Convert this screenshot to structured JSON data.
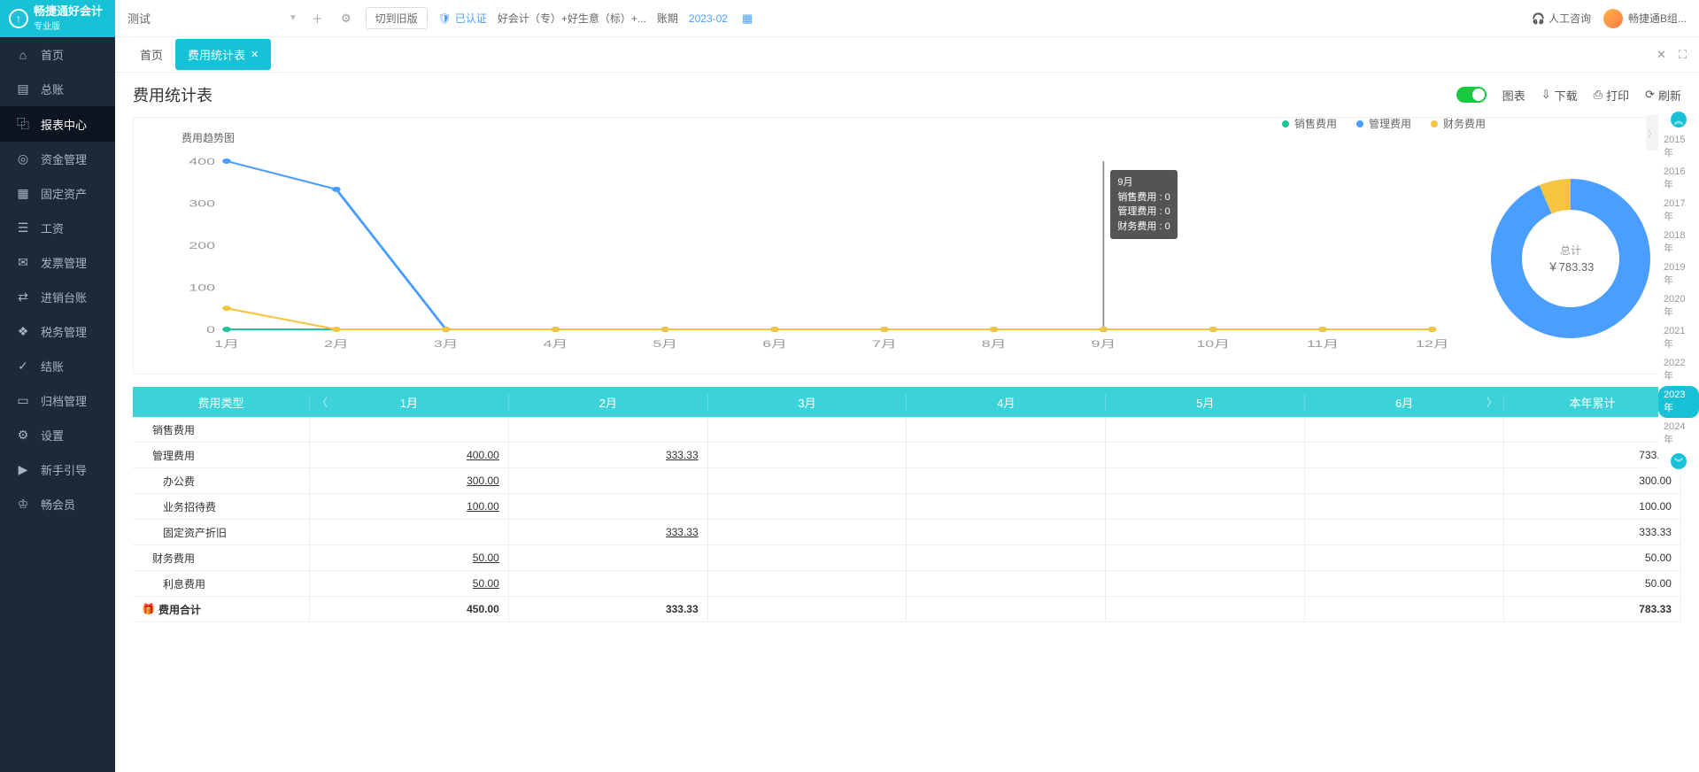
{
  "logo": {
    "brand": "畅捷通好会计",
    "edition": "专业版"
  },
  "sidebar": [
    {
      "icon": "⌂",
      "label": "首页"
    },
    {
      "icon": "▤",
      "label": "总账"
    },
    {
      "icon": "⿻",
      "label": "报表中心",
      "active": true
    },
    {
      "icon": "◎",
      "label": "资金管理"
    },
    {
      "icon": "▦",
      "label": "固定资产"
    },
    {
      "icon": "☰",
      "label": "工资"
    },
    {
      "icon": "✉",
      "label": "发票管理"
    },
    {
      "icon": "⇄",
      "label": "进销台账"
    },
    {
      "icon": "❖",
      "label": "税务管理"
    },
    {
      "icon": "✓",
      "label": "结账"
    },
    {
      "icon": "▭",
      "label": "归档管理"
    },
    {
      "icon": "⚙",
      "label": "设置"
    },
    {
      "icon": "▶",
      "label": "新手引导"
    },
    {
      "icon": "♔",
      "label": "畅会员"
    }
  ],
  "topbar": {
    "org": "测试",
    "old_version": "切到旧版",
    "verified": "已认证",
    "plan": "好会计（专）+好生意（标）+...",
    "period_label": "账期",
    "period_value": "2023-02",
    "support": "人工咨询",
    "user": "畅捷通B组..."
  },
  "tabs": [
    {
      "label": "首页",
      "active": false,
      "closeable": false
    },
    {
      "label": "费用统计表",
      "active": true,
      "closeable": true
    }
  ],
  "page": {
    "title": "费用统计表",
    "actions": {
      "chart": "图表",
      "download": "下载",
      "print": "打印",
      "refresh": "刷新"
    }
  },
  "chart": {
    "title": "费用趋势图",
    "x_labels": [
      "1月",
      "2月",
      "3月",
      "4月",
      "5月",
      "6月",
      "7月",
      "8月",
      "9月",
      "10月",
      "11月",
      "12月"
    ],
    "y_ticks": [
      0,
      100,
      200,
      300,
      400
    ],
    "y_max": 400,
    "series": [
      {
        "name": "销售费用",
        "color": "#1fc39a",
        "values": [
          0,
          0,
          0,
          0,
          0,
          0,
          0,
          0,
          0,
          0,
          0,
          0
        ]
      },
      {
        "name": "管理费用",
        "color": "#4a9eff",
        "values": [
          400,
          333,
          0,
          0,
          0,
          0,
          0,
          0,
          0,
          0,
          0,
          0
        ]
      },
      {
        "name": "财务费用",
        "color": "#f5c542",
        "values": [
          50,
          0,
          0,
          0,
          0,
          0,
          0,
          0,
          0,
          0,
          0,
          0
        ]
      }
    ],
    "tooltip": {
      "month": "9月",
      "lines": [
        "销售费用 : 0",
        "管理费用 : 0",
        "财务费用 : 0"
      ],
      "x_index": 8
    },
    "donut": {
      "center_label": "总计",
      "center_value": "￥783.33",
      "slices": [
        {
          "color": "#4a9eff",
          "pct": 93.6
        },
        {
          "color": "#f5c542",
          "pct": 6.4
        }
      ]
    }
  },
  "table": {
    "header_type": "费用类型",
    "months": [
      "1月",
      "2月",
      "3月",
      "4月",
      "5月",
      "6月"
    ],
    "header_total": "本年累计",
    "rows": [
      {
        "label": "销售费用",
        "indent": 1,
        "vals": [
          "",
          "",
          "",
          "",
          "",
          ""
        ],
        "total": ""
      },
      {
        "label": "管理费用",
        "indent": 1,
        "vals": [
          "400.00",
          "333.33",
          "",
          "",
          "",
          ""
        ],
        "total": "733.33",
        "u": true
      },
      {
        "label": "办公费",
        "indent": 2,
        "vals": [
          "300.00",
          "",
          "",
          "",
          "",
          ""
        ],
        "total": "300.00",
        "u": true
      },
      {
        "label": "业务招待费",
        "indent": 2,
        "vals": [
          "100.00",
          "",
          "",
          "",
          "",
          ""
        ],
        "total": "100.00",
        "u": true
      },
      {
        "label": "固定资产折旧",
        "indent": 2,
        "vals": [
          "",
          "333.33",
          "",
          "",
          "",
          ""
        ],
        "total": "333.33",
        "u": true
      },
      {
        "label": "财务费用",
        "indent": 1,
        "vals": [
          "50.00",
          "",
          "",
          "",
          "",
          ""
        ],
        "total": "50.00",
        "u": true
      },
      {
        "label": "利息费用",
        "indent": 2,
        "vals": [
          "50.00",
          "",
          "",
          "",
          "",
          ""
        ],
        "total": "50.00",
        "u": true
      }
    ],
    "total_row": {
      "label": "费用合计",
      "vals": [
        "450.00",
        "333.33",
        "",
        "",
        "",
        ""
      ],
      "total": "783.33"
    }
  },
  "years": {
    "list": [
      "2015年",
      "2016年",
      "2017年",
      "2018年",
      "2019年",
      "2020年",
      "2021年",
      "2022年",
      "2023年",
      "2024年"
    ],
    "active": "2023年"
  }
}
